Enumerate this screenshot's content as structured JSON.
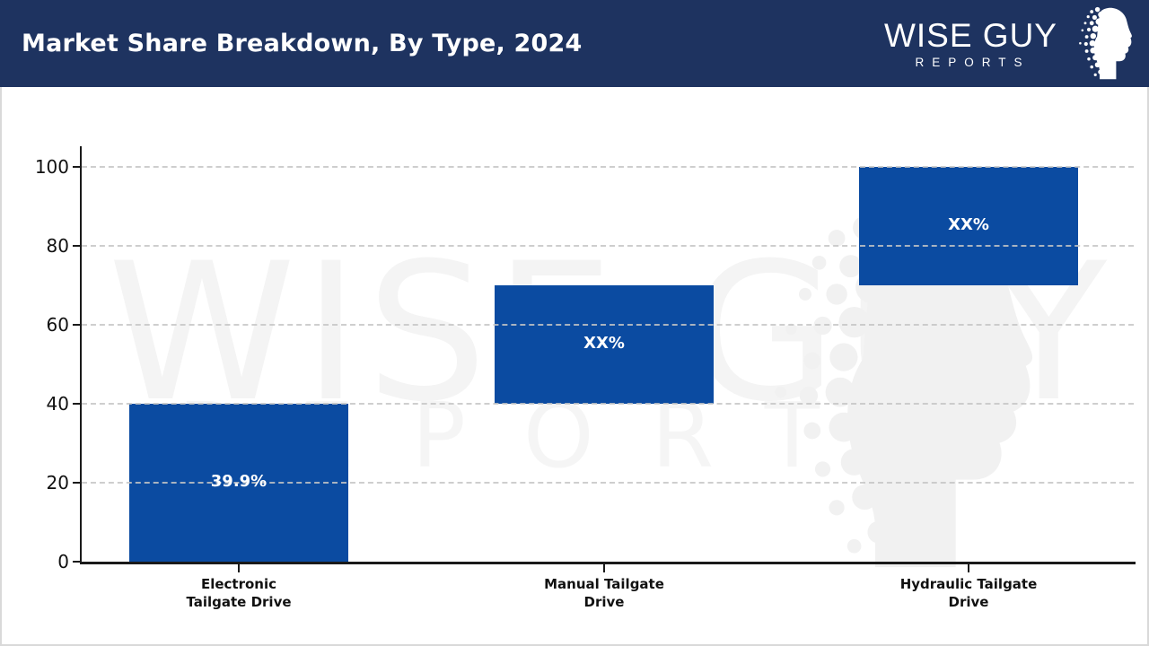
{
  "header": {
    "title": "Market Share Breakdown, By Type, 2024",
    "logo": {
      "line1": "WISE GUY",
      "line2": "REPORTS"
    }
  },
  "watermark": {
    "line1": "WISE GUY",
    "line2": "REPORTS"
  },
  "colors": {
    "header_bg": "#1e3360",
    "bar": "#0b4ba1",
    "grid": "#c6c6c6",
    "axis": "#1a1a1a",
    "value_label": "#ffffff",
    "watermark": "#f4f4f4"
  },
  "chart_data": {
    "type": "bar",
    "subtype": "stepped-waterfall-market-share",
    "title": "Market Share Breakdown, By Type, 2024",
    "categories": [
      "Electronic Tailgate Drive",
      "Manual Tailgate Drive",
      "Hydraulic Tailgate Drive"
    ],
    "category_lines": [
      [
        "Electronic",
        "Tailgate Drive"
      ],
      [
        "Manual Tailgate",
        "Drive"
      ],
      [
        "Hydraulic Tailgate",
        "Drive"
      ]
    ],
    "segments": [
      {
        "category": "Electronic Tailgate Drive",
        "start": 0,
        "end": 39.9,
        "value_label": "39.9%"
      },
      {
        "category": "Manual Tailgate Drive",
        "start": 40,
        "end": 70,
        "value_label": "XX%"
      },
      {
        "category": "Hydraulic Tailgate Drive",
        "start": 70,
        "end": 100,
        "value_label": "XX%"
      }
    ],
    "ylim": [
      0,
      100
    ],
    "yticks": [
      0,
      20,
      40,
      60,
      80,
      100
    ],
    "xlabel": "",
    "ylabel": "",
    "grid": "horizontal-dashed",
    "legend": "none",
    "bar_color": "#0b4ba1",
    "value_label_color": "#ffffff"
  }
}
